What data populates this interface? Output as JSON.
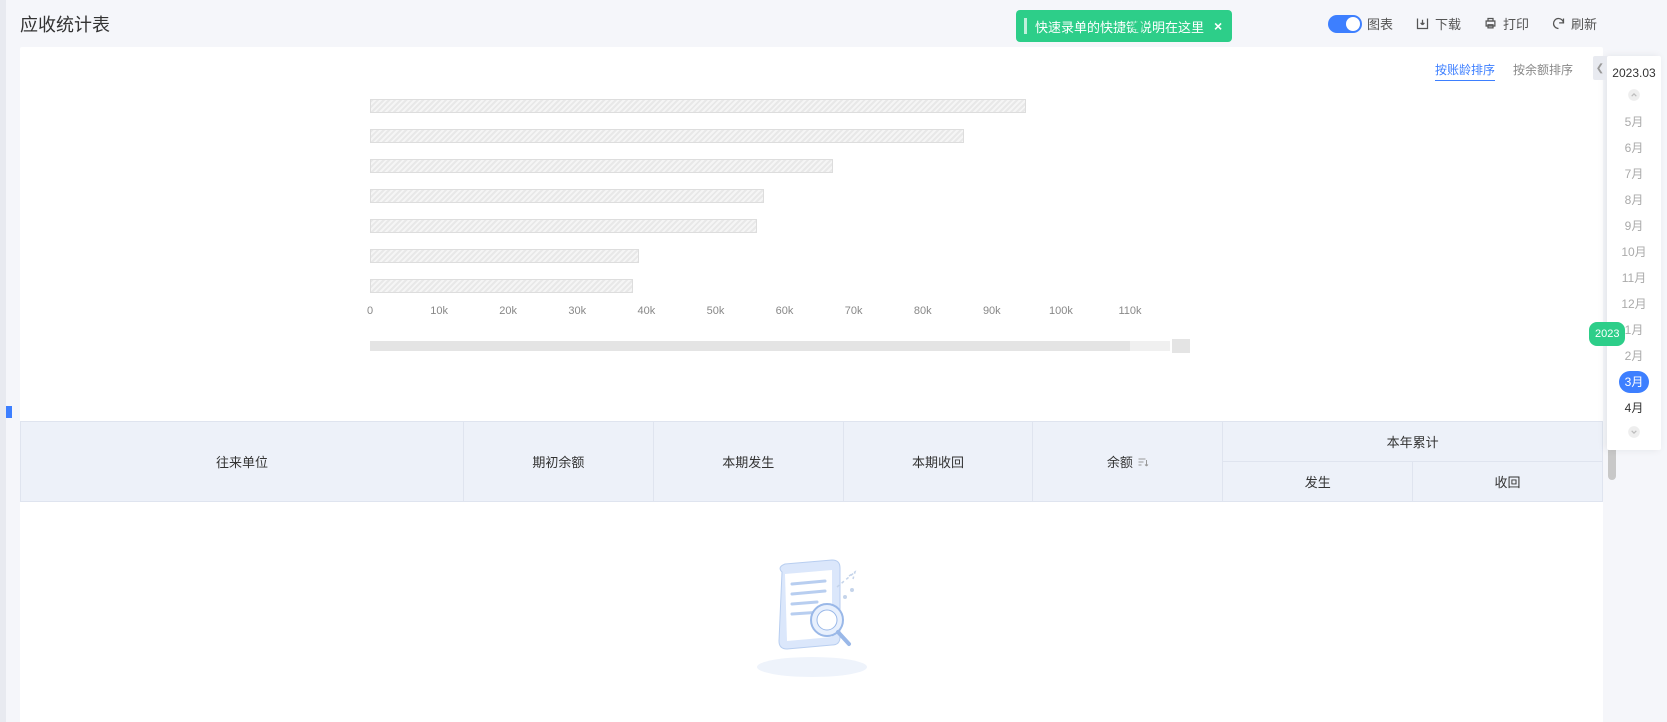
{
  "page": {
    "title": "应收统计表"
  },
  "tip": {
    "text": "快速录单的快捷键说明在这里",
    "close": "×"
  },
  "toolbar": {
    "chart_label": "图表",
    "download_label": "下载",
    "print_label": "打印",
    "refresh_label": "刷新"
  },
  "sort": {
    "by_age": "按账龄排序",
    "by_balance": "按余额排序",
    "active": "by_age"
  },
  "chart": {
    "type": "bar-horizontal",
    "xmax": 110000,
    "x_ticks": [
      0,
      10000,
      20000,
      30000,
      40000,
      50000,
      60000,
      70000,
      80000,
      90000,
      100000,
      110000
    ],
    "x_tick_labels": [
      "0",
      "10k",
      "20k",
      "30k",
      "40k",
      "50k",
      "60k",
      "70k",
      "80k",
      "90k",
      "100k",
      "110k"
    ],
    "bars": [
      {
        "value": 95000
      },
      {
        "value": 86000
      },
      {
        "value": 67000
      },
      {
        "value": 57000
      },
      {
        "value": 56000
      },
      {
        "value": 39000
      },
      {
        "value": 38000
      }
    ],
    "bar_fill": "#eeeeee",
    "bar_border": "#dddddd",
    "axis_color": "#888888",
    "background": "#ffffff",
    "scroll": {
      "thumb_start": 0,
      "thumb_width": 0.95
    }
  },
  "table": {
    "columns": {
      "partner": "往来单位",
      "opening": "期初余额",
      "current_occur": "本期发生",
      "current_recover": "本期收回",
      "balance": "余额",
      "ytd_group": "本年累计",
      "ytd_occur": "发生",
      "ytd_recover": "收回"
    },
    "rows": []
  },
  "date_panel": {
    "current": "2023.03",
    "year_badge": "2023",
    "months": [
      {
        "label": "5月",
        "style": "light"
      },
      {
        "label": "6月",
        "style": "light"
      },
      {
        "label": "7月",
        "style": "light"
      },
      {
        "label": "8月",
        "style": "light"
      },
      {
        "label": "9月",
        "style": "light"
      },
      {
        "label": "10月",
        "style": "light"
      },
      {
        "label": "11月",
        "style": "light"
      },
      {
        "label": "12月",
        "style": "light"
      },
      {
        "label": "1月",
        "style": "light",
        "year_badge": true
      },
      {
        "label": "2月",
        "style": "light"
      },
      {
        "label": "3月",
        "style": "active"
      },
      {
        "label": "4月",
        "style": "dark"
      }
    ]
  },
  "colors": {
    "primary": "#3d7fff",
    "success": "#2dce89",
    "header_bg": "#edf1f9",
    "header_border": "#dfe4ef",
    "page_bg": "#f5f6fa"
  }
}
